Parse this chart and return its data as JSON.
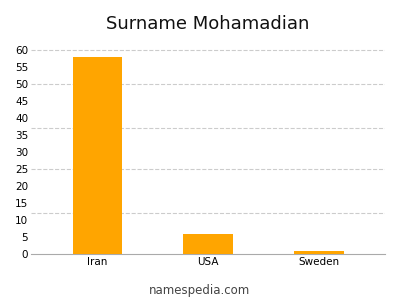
{
  "title": "Surname Mohamadian",
  "categories": [
    "Iran",
    "USA",
    "Sweden"
  ],
  "values": [
    58,
    6,
    1
  ],
  "bar_color": "#FFA500",
  "bar_width": 0.45,
  "ylim": [
    0,
    63
  ],
  "yticks": [
    0,
    5,
    10,
    15,
    20,
    25,
    30,
    35,
    40,
    45,
    50,
    55,
    60
  ],
  "grid_ticks": [
    12,
    25,
    37,
    50,
    60
  ],
  "background_color": "#ffffff",
  "grid_color": "#cccccc",
  "title_fontsize": 13,
  "tick_fontsize": 7.5,
  "footer_text": "namespedia.com",
  "footer_fontsize": 8.5,
  "footer_color": "#444444"
}
